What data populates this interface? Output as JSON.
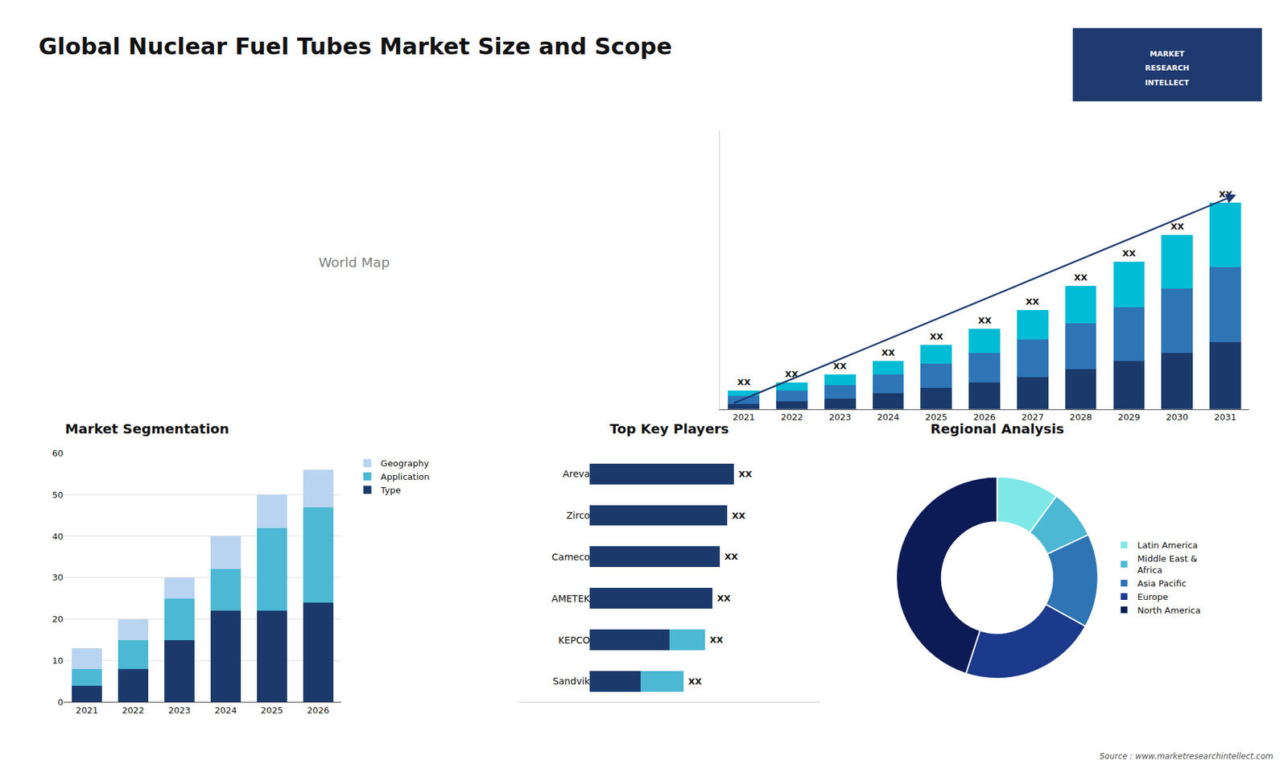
{
  "chart_data": [
    {
      "type": "bar",
      "stacked": true,
      "title": "Global Nuclear Fuel Tubes Market Size and Scope",
      "categories": [
        "2021",
        "2022",
        "2023",
        "2024",
        "2025",
        "2026",
        "2027",
        "2028",
        "2029",
        "2030",
        "2031"
      ],
      "series": [
        {
          "color": "#1b3a6b",
          "values": [
            2,
            3,
            4,
            6,
            8,
            10,
            12,
            15,
            18,
            21,
            25
          ]
        },
        {
          "color": "#2e75b6",
          "values": [
            3,
            4,
            5,
            7,
            9,
            11,
            14,
            17,
            20,
            24,
            28
          ]
        },
        {
          "color": "#00bcd4",
          "values": [
            2,
            3,
            4,
            5,
            7,
            9,
            11,
            14,
            17,
            20,
            24
          ]
        }
      ],
      "ylim": [
        0,
        103.95
      ],
      "tick_labels": "x",
      "grid": false,
      "annotations": [
        {
          "text": "XX",
          "x": "2021"
        },
        {
          "text": "XX",
          "x": "2022"
        },
        {
          "text": "XX",
          "x": "2023"
        },
        {
          "text": "XX",
          "x": "2024"
        },
        {
          "text": "XX",
          "x": "2025"
        },
        {
          "text": "XX",
          "x": "2026"
        },
        {
          "text": "XX",
          "x": "2027"
        },
        {
          "text": "XX",
          "x": "2028"
        },
        {
          "text": "XX",
          "x": "2029"
        },
        {
          "text": "XX",
          "x": "2030"
        },
        {
          "text": "XX",
          "x": "2031"
        },
        {
          "text": "World Map"
        },
        {
          "text": "MARKET"
        },
        {
          "text": "RESEARCH"
        },
        {
          "text": "INTELLECT"
        },
        {
          "text": "Source : www.marketresearchintellect.com"
        }
      ]
    },
    {
      "type": "bar",
      "stacked": true,
      "title": "Market Segmentation",
      "categories": [
        "2021",
        "2022",
        "2023",
        "2024",
        "2025",
        "2026"
      ],
      "series": [
        {
          "name": "Type",
          "color": "#1b3a6b",
          "values": [
            4,
            8,
            15,
            22,
            22,
            24
          ]
        },
        {
          "name": "Application",
          "color": "#4cb8d4",
          "values": [
            4,
            7,
            10,
            10,
            20,
            23
          ]
        },
        {
          "name": "Geography",
          "color": "#b8d4f0",
          "values": [
            5,
            5,
            5,
            8,
            8,
            9
          ]
        }
      ],
      "ylim": [
        0,
        60
      ],
      "yticks": [
        0,
        10,
        20,
        30,
        40,
        50,
        60
      ],
      "grid": true,
      "legend": "right"
    },
    {
      "type": "bar",
      "stacked": true,
      "orientation": "horizontal",
      "title": "Top Key Players",
      "categories": [
        "Areva",
        "Zirco",
        "Cameco",
        "AMETEK",
        "KEPCO",
        "Sandvik"
      ],
      "series": [
        {
          "color": "#1b3a6b",
          "values": [
            10,
            9.5,
            9,
            8.5,
            5.5,
            3.5
          ]
        },
        {
          "color": "#4cb8d4",
          "values": [
            0,
            0,
            0,
            0,
            2.5,
            3.0
          ]
        }
      ],
      "xlim": [
        -5,
        16
      ],
      "tick_labels": "y",
      "grid": false,
      "annotations": [
        {
          "text": "XX",
          "x": "Areva"
        },
        {
          "text": "XX",
          "x": "Zirco"
        },
        {
          "text": "XX",
          "x": "Cameco"
        },
        {
          "text": "XX",
          "x": "AMETEK"
        },
        {
          "text": "XX",
          "x": "KEPCO"
        },
        {
          "text": "XX",
          "x": "Sandvik"
        }
      ]
    },
    {
      "type": "donut",
      "title": "Regional Analysis",
      "categories": [
        "Latin America",
        "Middle East &\nAfrica",
        "Asia Pacific",
        "Europe",
        "North America"
      ],
      "values": [
        10,
        8,
        15,
        22,
        45
      ],
      "colors": [
        "#7ee8e8",
        "#4db8d4",
        "#2e75b6",
        "#1b3a8c",
        "#0d1b55"
      ],
      "legend": "right"
    }
  ]
}
